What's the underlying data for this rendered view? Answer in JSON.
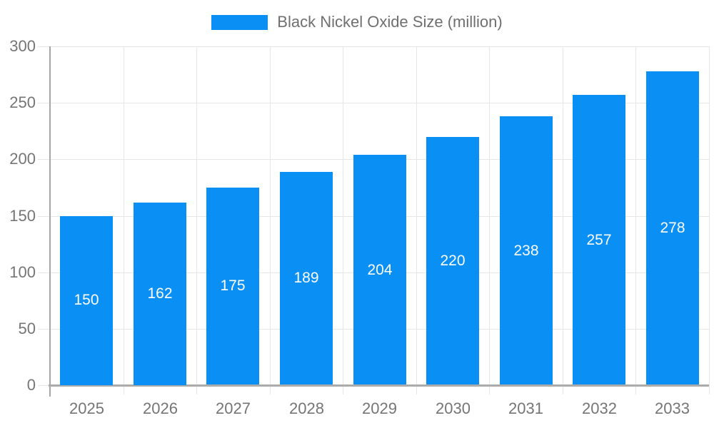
{
  "chart_data": {
    "type": "bar",
    "title": "",
    "legend": {
      "label": "Black Nickel Oxide Size (million)",
      "position": "top-center"
    },
    "categories": [
      "2025",
      "2026",
      "2027",
      "2028",
      "2029",
      "2030",
      "2031",
      "2032",
      "2033"
    ],
    "series": [
      {
        "name": "Black Nickel Oxide Size (million)",
        "values": [
          150,
          162,
          175,
          189,
          204,
          220,
          238,
          257,
          278
        ]
      }
    ],
    "value_labels": [
      "150",
      "162",
      "175",
      "189",
      "204",
      "220",
      "238",
      "257",
      "278"
    ],
    "xlabel": "",
    "ylabel": "",
    "ylim": [
      0,
      300
    ],
    "yticks": [
      0,
      50,
      100,
      150,
      200,
      250,
      300
    ],
    "grid": true,
    "colors": {
      "bar": "#0a8ff5",
      "value_label": "#ffffff",
      "axis_label": "#757575",
      "legend_text": "#6f6f6f",
      "gridline": "#e6e6e6",
      "axis_line": "#a6a6a6"
    }
  }
}
